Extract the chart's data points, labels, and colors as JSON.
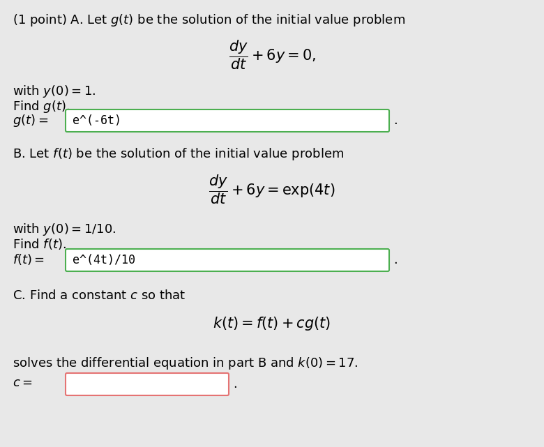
{
  "bg_color": "#e8e8e8",
  "text_color": "#000000",
  "title_line": "(1 point) A. Let $g(t)$ be the solution of the initial value problem",
  "eq_A": "$\\dfrac{dy}{dt} + 6y = 0,$",
  "with_A": "with $y(0) = 1.$",
  "find_A": "Find $g(t)$.",
  "label_A": "$g(t) =$",
  "answer_A": "e^(-6t)",
  "box_A_color": "#4caf50",
  "section_B": "B. Let $f(t)$ be the solution of the initial value problem",
  "eq_B": "$\\dfrac{dy}{dt} + 6y = \\exp(4t)$",
  "with_B": "with $y(0) = 1/10.$",
  "find_B": "Find $f(t)$.",
  "label_B": "$f(t) =$",
  "answer_B": "e^(4t)/10",
  "box_B_color": "#4caf50",
  "section_C": "C. Find a constant $c$ so that",
  "eq_C": "$k(t) = f(t) + cg(t)$",
  "solves_line": "solves the differential equation in part B and $k(0) = 17.$",
  "label_C": "$c =$",
  "box_C_color": "#e57373",
  "fig_width": 7.8,
  "fig_height": 6.41
}
